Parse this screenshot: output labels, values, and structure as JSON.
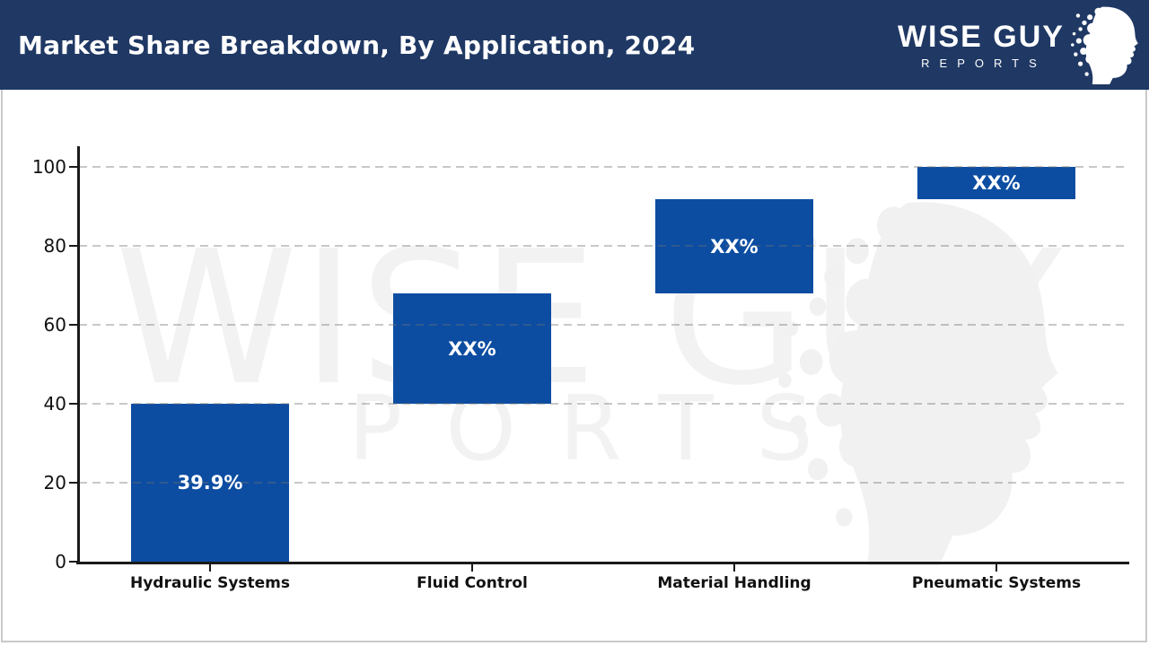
{
  "header": {
    "title": "Market Share Breakdown, By Application, 2024",
    "logo": {
      "line1": "WISE GUY",
      "line2": "REPORTS"
    }
  },
  "watermark": {
    "line1": "WISE GUY",
    "line2": "PORTS"
  },
  "chart_data": {
    "type": "bar",
    "subtype": "waterfall-stacked-percentage",
    "title": "Market Share Breakdown, By Application, 2024",
    "categories": [
      "Hydraulic Systems",
      "Fluid Control",
      "Material Handling",
      "Pneumatic Systems"
    ],
    "segments": [
      {
        "category": "Hydraulic Systems",
        "start": 0,
        "end": 39.9,
        "label": "39.9%"
      },
      {
        "category": "Fluid Control",
        "start": 39.9,
        "end": 67.9,
        "label": "XX%"
      },
      {
        "category": "Material Handling",
        "start": 67.9,
        "end": 91.8,
        "label": "XX%"
      },
      {
        "category": "Pneumatic Systems",
        "start": 91.8,
        "end": 100,
        "label": "XX%"
      }
    ],
    "xlabel": "",
    "ylabel": "",
    "ylim": [
      0,
      100
    ],
    "yticks": [
      0,
      20,
      40,
      60,
      80,
      100
    ],
    "grid": "horizontal-dashed",
    "legend": "none",
    "bar_color": "#0C4DA2",
    "bar_label_color": "#ffffff"
  },
  "colors": {
    "header_bg": "#1F3864",
    "bar": "#0C4DA2",
    "axis": "#1a1a1a",
    "grid": "#d4d4d4",
    "watermark": "#f2f2f2",
    "frame_border": "#c9c9c9"
  }
}
